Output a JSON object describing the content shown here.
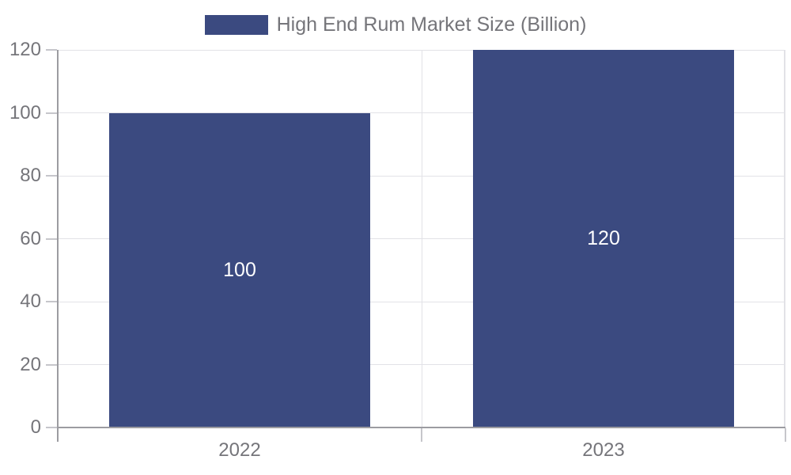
{
  "chart_data": {
    "type": "bar",
    "title": "High End Rum Market Size (Billion)",
    "categories": [
      "2022",
      "2023"
    ],
    "series": [
      {
        "name": "High End Rum Market Size (Billion)",
        "values": [
          100,
          120
        ]
      }
    ],
    "data_labels": [
      "100",
      "120"
    ],
    "xlabel": "",
    "ylabel": "",
    "ylim": [
      0,
      120
    ],
    "yticks": [
      0,
      20,
      40,
      60,
      80,
      100,
      120
    ],
    "grid": true,
    "legend_position": "top-center",
    "colors": {
      "bar": "#3B4A80",
      "bar_label": "#FFFFFF",
      "axis_line": "#9C9CA1",
      "grid_line": "#E2E2E7",
      "tick": "#C6C6CB",
      "text": "#75757A"
    }
  }
}
